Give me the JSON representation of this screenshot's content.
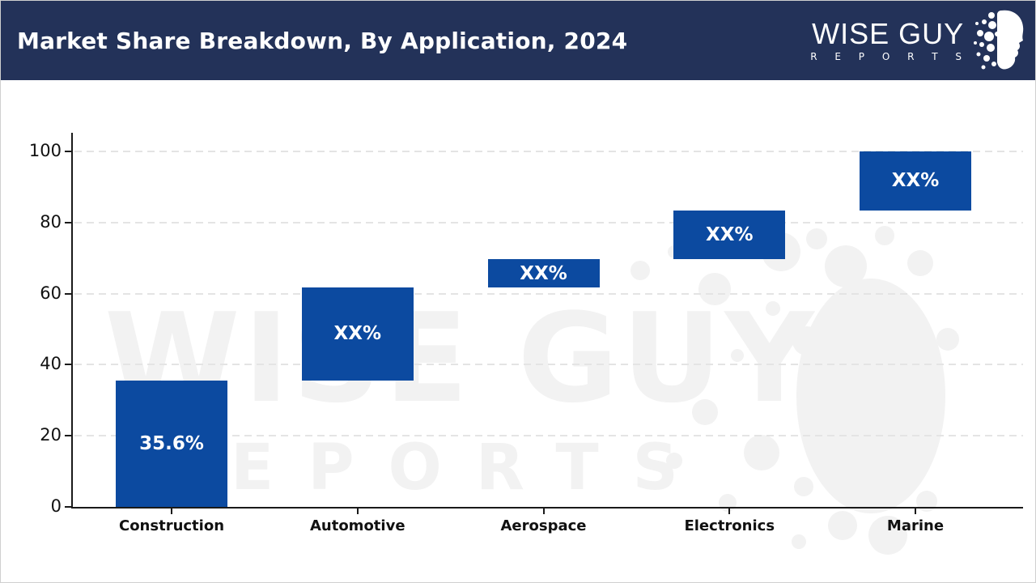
{
  "header": {
    "title": "Market Share Breakdown, By Application, 2024",
    "logo": {
      "name": "WISE GUY",
      "sub": "R E P O R T S"
    }
  },
  "watermark": {
    "line1": "WISE GUY",
    "line2": "REPORTS"
  },
  "colors": {
    "header_bg": "#233259",
    "bar": "#0c4aa0",
    "bar_label": "#ffffff",
    "axis": "#1a1a1a",
    "grid": "#e4e4e4",
    "tick_label": "#111111",
    "watermark": "#f2f2f2",
    "page_border": "#cfcfcf"
  },
  "chart_data": {
    "type": "bar",
    "subtype": "waterfall",
    "title": "Market Share Breakdown, By Application, 2024",
    "xlabel": "",
    "ylabel": "",
    "categories": [
      "Construction",
      "Automotive",
      "Aerospace",
      "Electronics",
      "Marine"
    ],
    "series": [
      {
        "name": "Market share (%)",
        "segments": [
          {
            "category": "Construction",
            "start": 0,
            "end": 35.6,
            "label": "35.6%"
          },
          {
            "category": "Automotive",
            "start": 35.6,
            "end": 61.7,
            "label": "XX%"
          },
          {
            "category": "Aerospace",
            "start": 61.7,
            "end": 69.7,
            "label": "XX%"
          },
          {
            "category": "Electronics",
            "start": 69.7,
            "end": 83.4,
            "label": "XX%"
          },
          {
            "category": "Marine",
            "start": 83.4,
            "end": 100,
            "label": "XX%"
          }
        ]
      }
    ],
    "yticks": [
      0,
      20,
      40,
      60,
      80,
      100
    ],
    "ylim": [
      0,
      105
    ],
    "grid": "dashed-horizontal",
    "legend": "none"
  }
}
